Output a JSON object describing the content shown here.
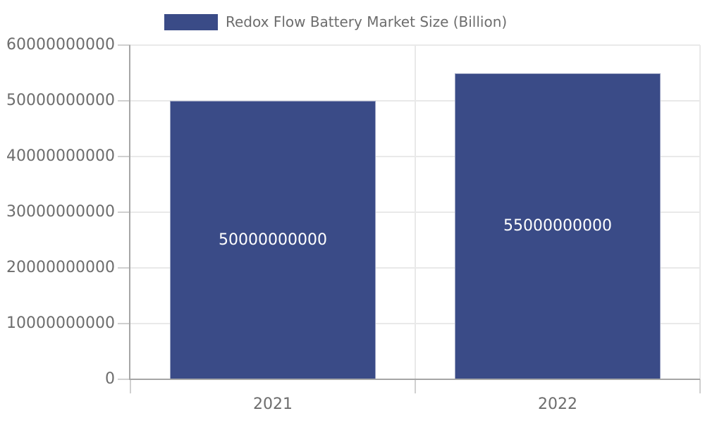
{
  "legend": {
    "label": "Redox Flow Battery Market Size (Billion)"
  },
  "colors": {
    "bar_fill": "#3a4b87",
    "bar_edge": "#9da5c3",
    "gridline": "#e9e9e9",
    "axis_line": "#a6a6a6",
    "outer_tick": "#d0d0d0",
    "tick_text": "#6d6d6d",
    "bar_value_text": "#ffffff",
    "background": "#ffffff"
  },
  "chart_data": {
    "type": "bar",
    "title": "",
    "xlabel": "",
    "ylabel": "",
    "categories": [
      "2021",
      "2022"
    ],
    "values": [
      50000000000,
      55000000000
    ],
    "bar_labels": [
      "50000000000",
      "55000000000"
    ],
    "series_name": "Redox Flow Battery Market Size (Billion)",
    "yticks": [
      0,
      10000000000,
      20000000000,
      30000000000,
      40000000000,
      50000000000,
      60000000000
    ],
    "ytick_labels": [
      "0",
      "10000000000",
      "20000000000",
      "30000000000",
      "40000000000",
      "50000000000",
      "60000000000"
    ],
    "ylim": [
      0,
      60000000000
    ],
    "grid": true,
    "legend_position": "top",
    "bar_label_position": "center-inside"
  }
}
